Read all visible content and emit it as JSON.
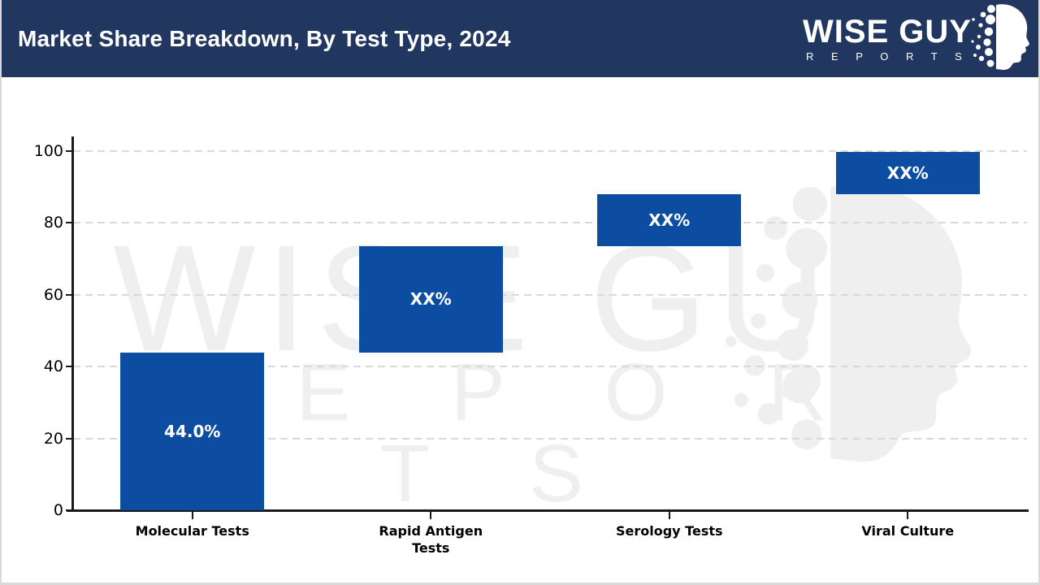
{
  "header": {
    "bg_color": "#213760",
    "title": "Market Share Breakdown, By Test Type, 2024",
    "logo": {
      "line1": "WISE GUY",
      "line2": "R E P O R T S",
      "face_icon": "dotted-head-profile"
    }
  },
  "watermark": {
    "line1": "WISE GUY",
    "line2": "R E P O R T S",
    "color": "#efefef",
    "face_icon": "dotted-head-profile"
  },
  "chart_data": {
    "type": "bar",
    "subtype": "waterfall",
    "title": "Market Share Breakdown, By Test Type, 2024",
    "xlabel": "",
    "ylabel": "",
    "categories": [
      "Molecular Tests",
      "Rapid Antigen Tests",
      "Serology Tests",
      "Viral Culture"
    ],
    "segments": [
      {
        "category": "Molecular Tests",
        "label": "44.0%",
        "start": 0,
        "end": 44.0
      },
      {
        "category": "Rapid Antigen Tests",
        "label": "XX%",
        "start": 44.0,
        "end": 73.5
      },
      {
        "category": "Serology Tests",
        "label": "XX%",
        "start": 73.5,
        "end": 88.0
      },
      {
        "category": "Viral Culture",
        "label": "XX%",
        "start": 88.0,
        "end": 99.8
      }
    ],
    "yticks": [
      0,
      20,
      40,
      60,
      80,
      100
    ],
    "ylim": [
      0,
      104
    ],
    "grid": "horizontal-dashed",
    "bar_color": "#0c4da2",
    "bar_label_color": "#ffffff",
    "axis_color": "#1a1a1a",
    "grid_color": "#d9d9d9"
  }
}
